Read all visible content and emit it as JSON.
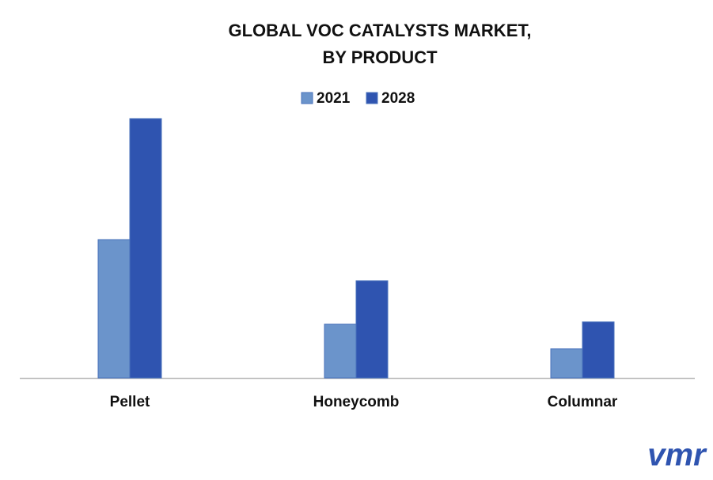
{
  "chart_data": {
    "type": "bar",
    "title": [
      "GLOBAL VOC CATALYSTS MARKET,",
      "BY PRODUCT"
    ],
    "categories": [
      "Pellet",
      "Honeycomb",
      "Columnar"
    ],
    "series": [
      {
        "name": "2021",
        "color": "#6b94cb",
        "values": [
          175,
          68,
          37
        ]
      },
      {
        "name": "2028",
        "color": "#2f54b0",
        "values": [
          328,
          123,
          71
        ]
      }
    ],
    "ylim": [
      0,
      350
    ],
    "logo": "vmr"
  }
}
